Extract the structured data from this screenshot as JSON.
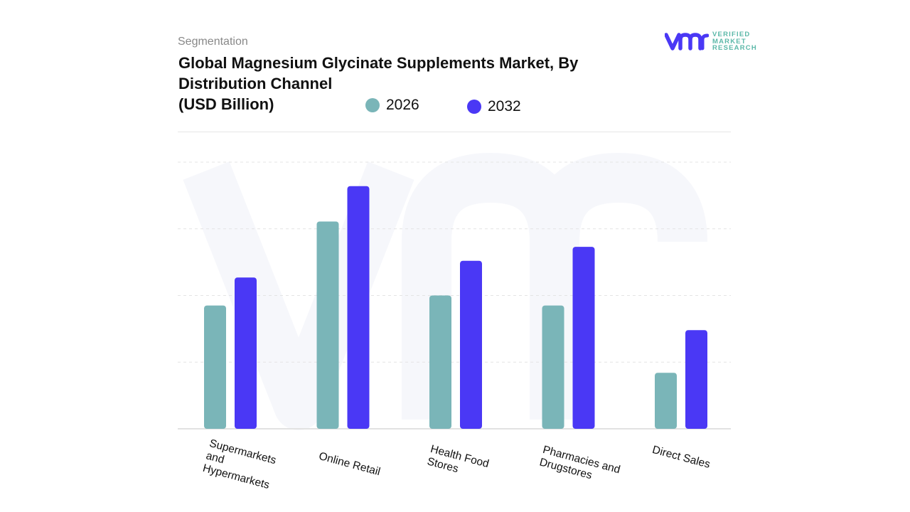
{
  "header": {
    "segment_label": "Segmentation",
    "title": "Global Magnesium Glycinate Supplements Market, By Distribution Channel\n(USD Billion)"
  },
  "logo": {
    "text": "VERIFIED\nMARKET\nRESEARCH",
    "brand_colors": [
      "#4a38f5",
      "#5bb8a8"
    ]
  },
  "chart_data": {
    "type": "bar",
    "title": "Global Magnesium Glycinate Supplements Market, By Distribution Channel (USD Billion)",
    "categories": [
      "Supermarkets\nand\nHypermarkets",
      "Online Retail",
      "Health Food\nStores",
      "Pharmacies and\nDrugstores",
      "Direct Sales"
    ],
    "series": [
      {
        "name": "2026",
        "color": "#7ab5b8",
        "values": [
          1.85,
          3.11,
          2.0,
          1.85,
          0.84
        ]
      },
      {
        "name": "2032",
        "color": "#4a38f5",
        "values": [
          2.27,
          3.64,
          2.52,
          2.73,
          1.48
        ]
      }
    ],
    "ylim": [
      0,
      4
    ],
    "y_tick_labels_shown": false,
    "grid": true,
    "legend_position": "top"
  }
}
